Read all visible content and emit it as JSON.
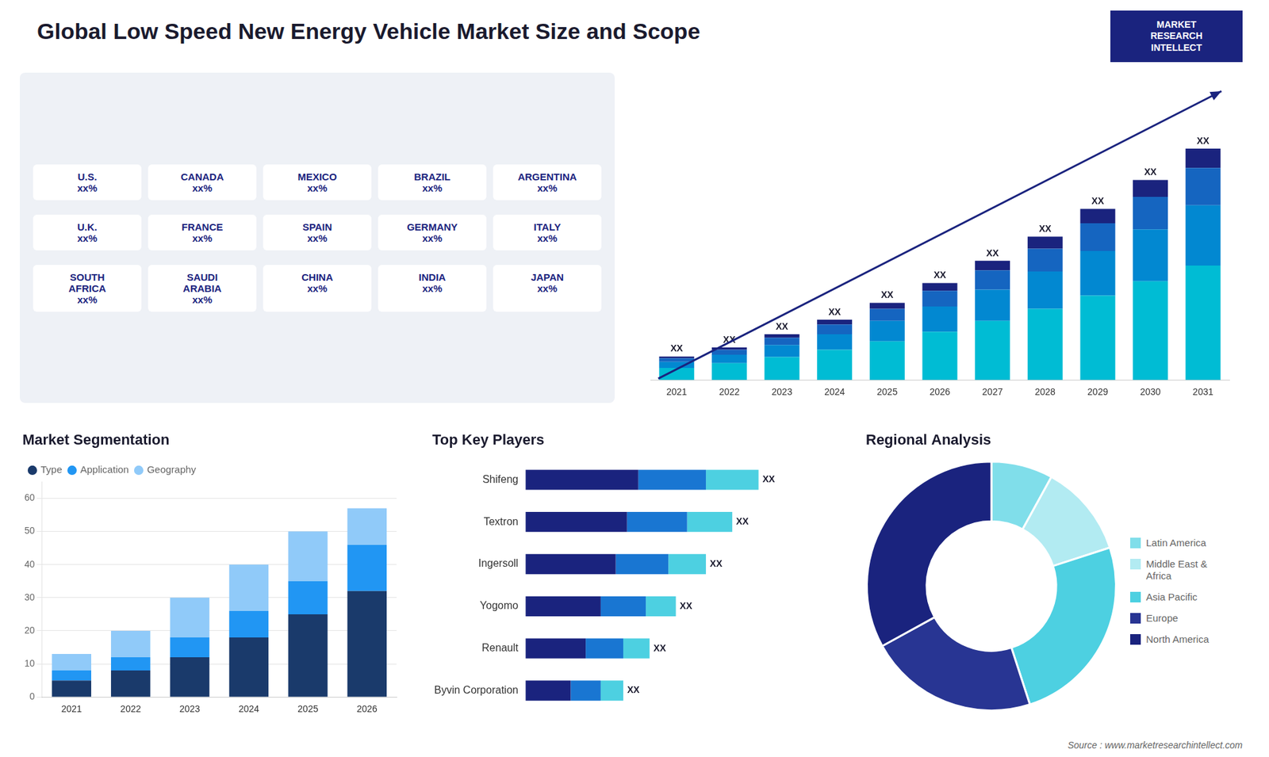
{
  "title": "Global Low Speed New Energy Vehicle Market Size and Scope",
  "source": "Source : www.marketresearchintellect.com",
  "logo": [
    "MARKET",
    "RESEARCH",
    "INTELLECT"
  ],
  "chart_data": [
    {
      "type": "map",
      "labels": [
        "U.S.\nxx%",
        "CANADA\nxx%",
        "MEXICO\nxx%",
        "BRAZIL\nxx%",
        "ARGENTINA\nxx%",
        "U.K.\nxx%",
        "FRANCE\nxx%",
        "SPAIN\nxx%",
        "GERMANY\nxx%",
        "ITALY\nxx%",
        "SOUTH\nAFRICA\nxx%",
        "SAUDI\nARABIA\nxx%",
        "CHINA\nxx%",
        "INDIA\nxx%",
        "JAPAN\nxx%"
      ]
    },
    {
      "type": "bar",
      "stacked": true,
      "categories": [
        "2021",
        "2022",
        "2023",
        "2024",
        "2025",
        "2026",
        "2027",
        "2028",
        "2029",
        "2030",
        "2031"
      ],
      "series": [
        {
          "color": "#00bcd4",
          "values": [
            1.0,
            1.4,
            1.9,
            2.5,
            3.2,
            4.0,
            4.9,
            5.9,
            7.0,
            8.2,
            9.5
          ]
        },
        {
          "color": "#0288d1",
          "values": [
            0.5,
            0.7,
            1.0,
            1.3,
            1.7,
            2.1,
            2.6,
            3.1,
            3.7,
            4.3,
            5.0
          ]
        },
        {
          "color": "#1565c0",
          "values": [
            0.3,
            0.4,
            0.6,
            0.8,
            1.0,
            1.3,
            1.6,
            1.9,
            2.3,
            2.7,
            3.1
          ]
        },
        {
          "color": "#1a237e",
          "values": [
            0.15,
            0.2,
            0.3,
            0.4,
            0.5,
            0.65,
            0.8,
            1.0,
            1.2,
            1.4,
            1.6
          ]
        }
      ],
      "total_labels": [
        "XX",
        "XX",
        "XX",
        "XX",
        "XX",
        "XX",
        "XX",
        "XX",
        "XX",
        "XX",
        "XX"
      ],
      "ylim": [
        0,
        24.96
      ],
      "tick_labels": "x",
      "grid": false
    },
    {
      "type": "bar",
      "title": "Market Segmentation",
      "stacked": true,
      "categories": [
        "2021",
        "2022",
        "2023",
        "2024",
        "2025",
        "2026"
      ],
      "series": [
        {
          "name": "Type",
          "color": "#1a3a6b",
          "values": [
            5,
            8,
            12,
            18,
            25,
            32
          ]
        },
        {
          "name": "Application",
          "color": "#2196f3",
          "values": [
            3,
            4,
            6,
            8,
            10,
            14
          ]
        },
        {
          "name": "Geography",
          "color": "#90caf9",
          "values": [
            5,
            8,
            12,
            14,
            15,
            11
          ]
        }
      ],
      "ylim": [
        0,
        65
      ],
      "yticks": [
        0,
        10,
        20,
        30,
        40,
        50,
        60
      ],
      "grid": true,
      "legend": "upper left"
    },
    {
      "type": "bar",
      "title": "Top Key Players",
      "orientation": "horizontal",
      "stacked": true,
      "categories": [
        "Shifeng",
        "Textron",
        "Ingersoll",
        "Yogomo",
        "Renault",
        "Byvin Corporation"
      ],
      "series": [
        {
          "color": "#1a237e",
          "values": [
            0.3,
            0.27,
            0.24,
            0.2,
            0.16,
            0.12
          ]
        },
        {
          "color": "#1976d2",
          "values": [
            0.18,
            0.16,
            0.14,
            0.12,
            0.1,
            0.08
          ]
        },
        {
          "color": "#4dd0e1",
          "values": [
            0.14,
            0.12,
            0.1,
            0.08,
            0.07,
            0.06
          ]
        }
      ],
      "total_labels": [
        "XX",
        "XX",
        "XX",
        "XX",
        "XX",
        "XX"
      ],
      "xlim": [
        0,
        0.8
      ],
      "tick_labels": "y",
      "grid": false
    },
    {
      "type": "doughnut",
      "title": "Regional Analysis",
      "categories": [
        "Latin America",
        "Middle East &\nAfrica",
        "Asia Pacific",
        "Europe",
        "North America"
      ],
      "values": [
        8,
        12,
        25,
        22,
        33
      ],
      "colors": [
        "#80deea",
        "#b2ebf2",
        "#4dd0e1",
        "#283593",
        "#1a237e"
      ],
      "legend": "right"
    }
  ]
}
